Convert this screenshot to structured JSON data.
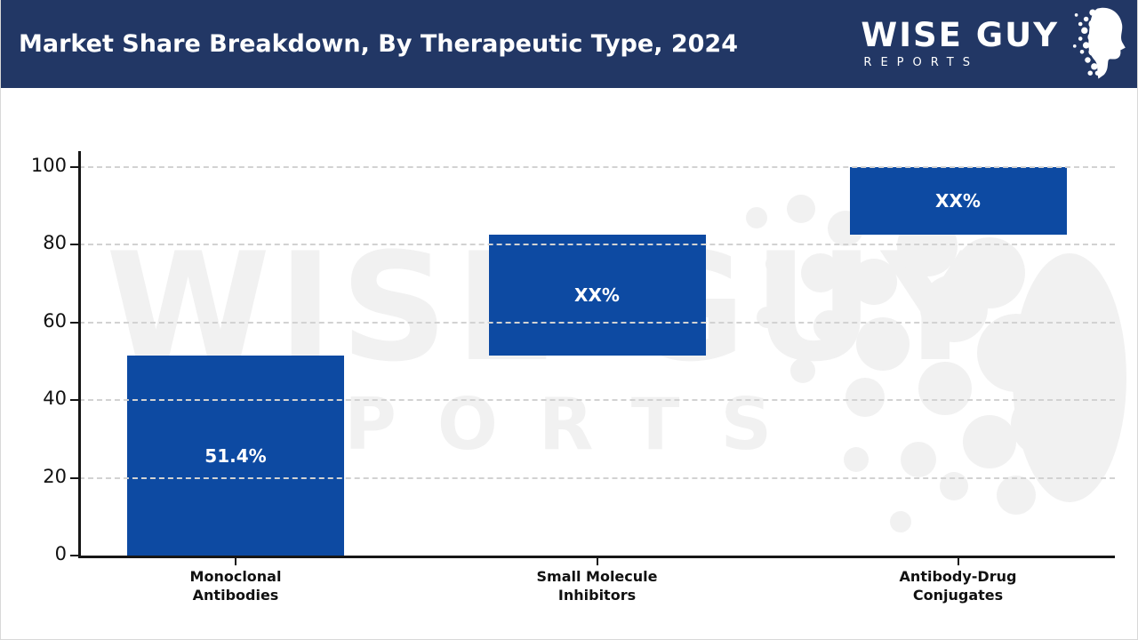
{
  "header": {
    "title": "Market Share Breakdown, By Therapeutic Type, 2024",
    "logo": {
      "wordmark": "WISE GUY",
      "subtext": "REPORTS"
    }
  },
  "watermark": {
    "line1": "WISE GUY",
    "line2": "REPORTS"
  },
  "colors": {
    "header_bg": "#223765",
    "bar": "#0d4aa2",
    "bar_label": "#ffffff",
    "grid": "#d2d2d2",
    "axis": "#161616",
    "watermark": "#f1f1f1"
  },
  "chart_data": {
    "type": "bar",
    "subtype": "floating-waterfall-segments",
    "title": "Market Share Breakdown, By Therapeutic Type, 2024",
    "xlabel": "",
    "ylabel": "",
    "ylim": [
      0,
      100
    ],
    "yticks": [
      0,
      20,
      40,
      60,
      80,
      100
    ],
    "grid": "dashed-horizontal",
    "legend": "none",
    "categories": [
      "Monoclonal Antibodies",
      "Small Molecule Inhibitors",
      "Antibody-Drug Conjugates"
    ],
    "categories_multiline": [
      [
        "Monoclonal",
        "Antibodies"
      ],
      [
        "Small Molecule",
        "Inhibitors"
      ],
      [
        "Antibody-Drug",
        "Conjugates"
      ]
    ],
    "segments": [
      {
        "category": "Monoclonal Antibodies",
        "from": 0,
        "to": 51.4,
        "label": "51.4%"
      },
      {
        "category": "Small Molecule Inhibitors",
        "from": 51.4,
        "to": 82.5,
        "label": "XX%"
      },
      {
        "category": "Antibody-Drug Conjugates",
        "from": 82.5,
        "to": 100,
        "label": "XX%"
      }
    ]
  }
}
